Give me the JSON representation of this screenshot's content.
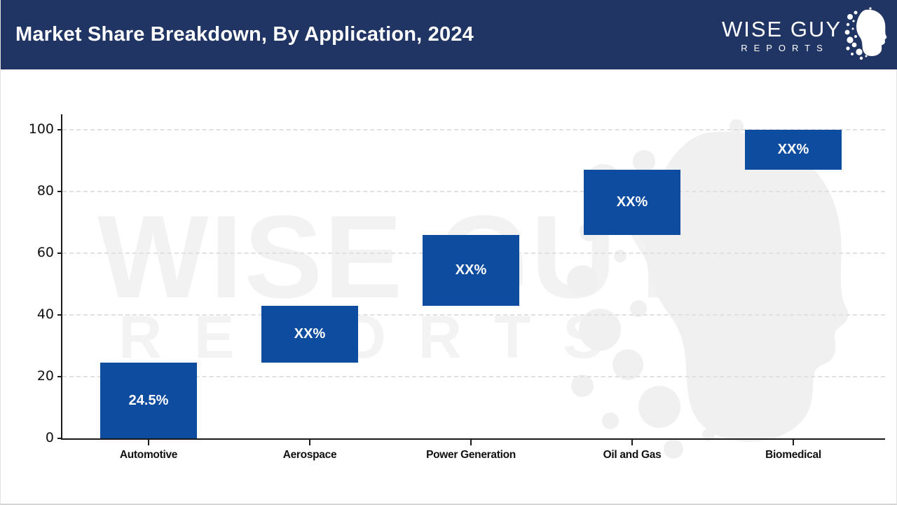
{
  "header": {
    "title": "Market Share Breakdown, By Application, 2024",
    "logo": {
      "line1": "WISE GUY",
      "line2": "REPORTS"
    }
  },
  "watermark": {
    "line1": "WISE GUY",
    "line2": "REPORTS"
  },
  "colors": {
    "header_bg": "#213564",
    "bar": "#0d4c9f",
    "grid": "#e0e0e0",
    "axis": "#1a1a1a",
    "watermark": "#f2f2f2"
  },
  "chart_data": {
    "type": "bar",
    "subtype": "waterfall",
    "title": "Market Share Breakdown, By Application, 2024",
    "categories": [
      "Automotive",
      "Aerospace",
      "Power Generation",
      "Oil and Gas",
      "Biomedical"
    ],
    "segments": [
      {
        "category": "Automotive",
        "from": 0,
        "to": 24.5,
        "label": "24.5%"
      },
      {
        "category": "Aerospace",
        "from": 24.5,
        "to": 43,
        "label": "XX%"
      },
      {
        "category": "Power Generation",
        "from": 43,
        "to": 66,
        "label": "XX%"
      },
      {
        "category": "Oil and Gas",
        "from": 66,
        "to": 87,
        "label": "XX%"
      },
      {
        "category": "Biomedical",
        "from": 87,
        "to": 100,
        "label": "XX%"
      }
    ],
    "y_ticks": [
      0,
      20,
      40,
      60,
      80,
      100
    ],
    "ylim": [
      0,
      105
    ],
    "xlabel": "",
    "ylabel": "",
    "grid": "horizontal-dashed",
    "legend": "none",
    "bar_color": "#0d4c9f"
  }
}
